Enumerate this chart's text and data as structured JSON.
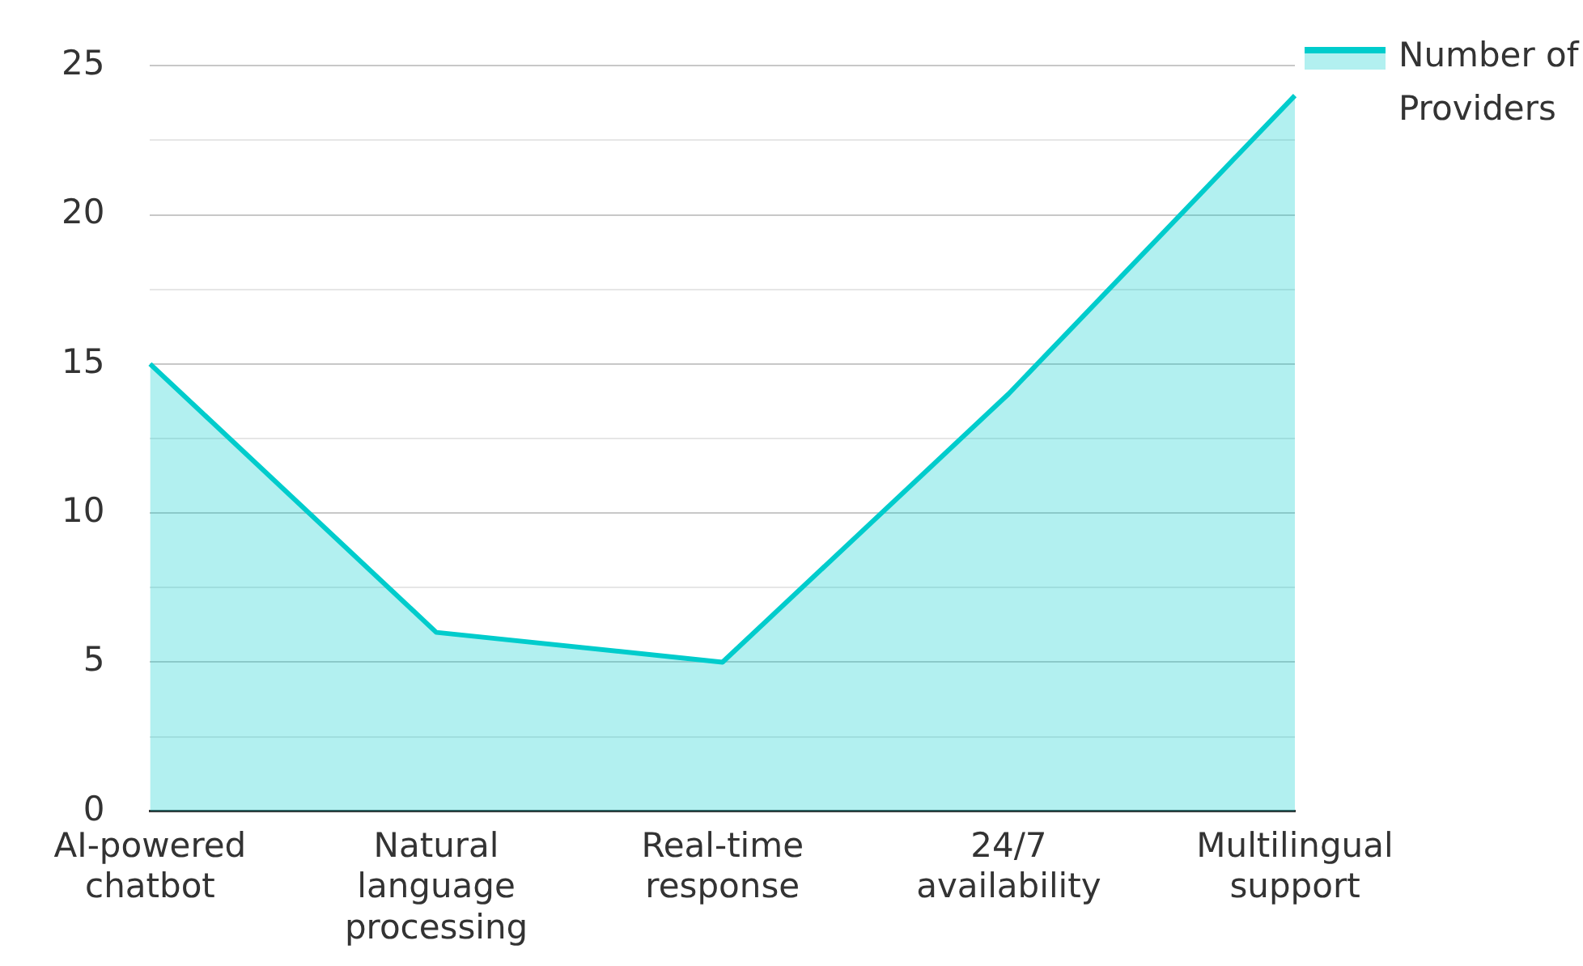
{
  "chart_data": {
    "type": "area",
    "categories": [
      "AI-powered chatbot",
      "Natural language processing",
      "Real-time response",
      "24/7 availability",
      "Multilingual support"
    ],
    "series": [
      {
        "name": "Number of Providers",
        "color": "#00cccc",
        "values": [
          15,
          6,
          5,
          14,
          24
        ]
      }
    ],
    "ylim": [
      0,
      25
    ],
    "yticks": [
      0,
      {
        "value": 2.5,
        "label": null
      },
      5,
      {
        "value": 7.5,
        "label": null
      },
      10,
      {
        "value": 12.5,
        "label": null
      },
      15,
      {
        "value": 17.5,
        "label": null
      },
      20,
      {
        "value": 22.5,
        "label": null
      },
      25
    ],
    "grid": "y",
    "legend": "top right"
  }
}
